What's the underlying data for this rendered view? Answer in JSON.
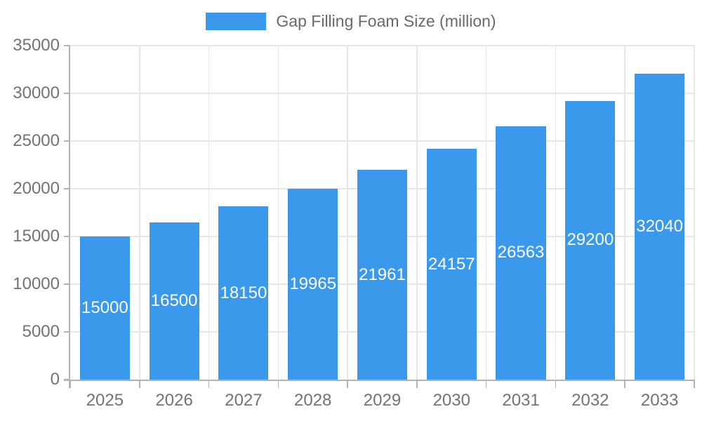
{
  "chart_data": {
    "type": "bar",
    "title": "Gap Filling Foam Size (million)",
    "legend": {
      "position": "top",
      "label": "Gap Filling Foam Size (million)"
    },
    "categories": [
      "2025",
      "2026",
      "2027",
      "2028",
      "2029",
      "2030",
      "2031",
      "2032",
      "2033"
    ],
    "values": [
      15000,
      16500,
      18150,
      19965,
      21961,
      24157,
      26563,
      29200,
      32040
    ],
    "xlabel": "",
    "ylabel": "",
    "ylim": [
      0,
      35000
    ],
    "yticks": [
      0,
      5000,
      10000,
      15000,
      20000,
      25000,
      30000,
      35000
    ],
    "grid": "on",
    "colors": {
      "bar": "#3b99ec",
      "grid_line": "#e7e7e7",
      "axis_line": "#b3b3b3",
      "tick_mark": "#b3b3b3",
      "axis_text": "#737373",
      "legend_text": "#666a6e",
      "bar_label_text": "#ffffff",
      "background": "#ffffff"
    }
  }
}
